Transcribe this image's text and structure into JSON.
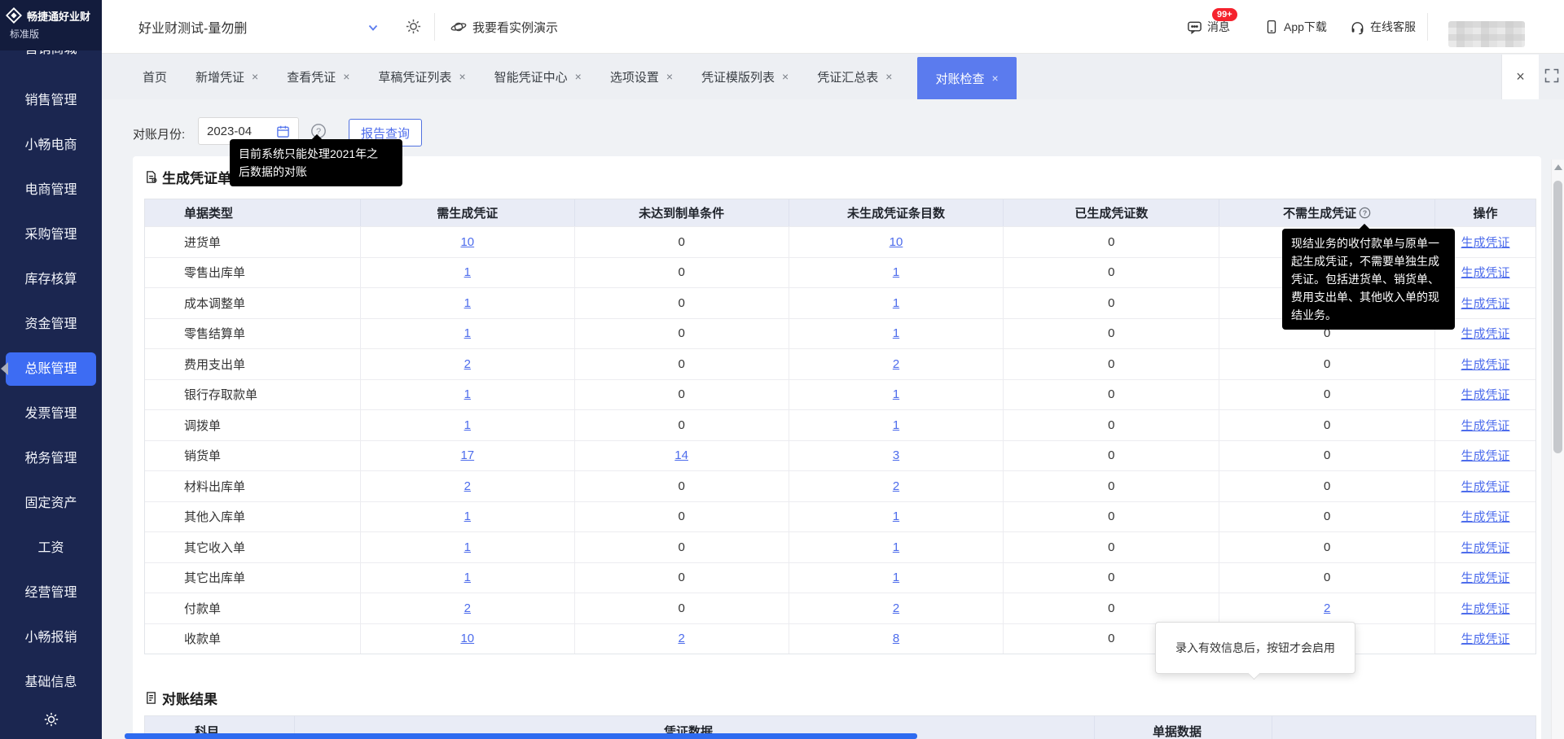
{
  "app": {
    "logo_text": "畅捷通好业财",
    "edition": "标准版"
  },
  "sidebar": {
    "hidden_item": "营销商城",
    "items": [
      "销售管理",
      "小畅电商",
      "电商管理",
      "采购管理",
      "库存核算",
      "资金管理",
      "总账管理",
      "发票管理",
      "税务管理",
      "固定资产",
      "工资",
      "经营管理",
      "小畅报销",
      "基础信息"
    ],
    "active_item": "总账管理"
  },
  "header": {
    "company": "好业财测试-量勿删",
    "demo_link": "我要看实例演示",
    "messages": "消息",
    "messages_badge": "99+",
    "app_download": "App下载",
    "support": "在线客服"
  },
  "tabs": [
    {
      "label": "首页",
      "closable": false,
      "active": false
    },
    {
      "label": "新增凭证",
      "closable": true,
      "active": false
    },
    {
      "label": "查看凭证",
      "closable": true,
      "active": false
    },
    {
      "label": "草稿凭证列表",
      "closable": true,
      "active": false
    },
    {
      "label": "智能凭证中心",
      "closable": true,
      "active": false
    },
    {
      "label": "选项设置",
      "closable": true,
      "active": false
    },
    {
      "label": "凭证模版列表",
      "closable": true,
      "active": false
    },
    {
      "label": "凭证汇总表",
      "closable": true,
      "active": false
    },
    {
      "label": "对账检查",
      "closable": true,
      "active": true
    }
  ],
  "tabbar": {
    "close_all": "×"
  },
  "toolbar": {
    "month_label": "对账月份:",
    "month_value": "2023-04",
    "report_button": "报告查询"
  },
  "tooltips": {
    "month_tip": [
      "目前系统只能处理2021年之",
      "后数据的对账"
    ],
    "no_need_tip": [
      "现结业务的收付款单与原单一",
      "起生成凭证，不需要单独生成",
      "凭证。包括进货单、销货单、",
      "费用支出单、其他收入单的现",
      "结业务。"
    ],
    "enable_tip": "录入有效信息后，按钮才会启用"
  },
  "voucher_section": {
    "title": "生成凭证单据",
    "headers": [
      "单据类型",
      "需生成凭证",
      "未达到制单条件",
      "未生成凭证条目数",
      "已生成凭证数",
      "不需生成凭证",
      "操作"
    ],
    "action_label": "生成凭证",
    "rows": [
      {
        "type": "进货单",
        "values": [
          {
            "v": "10",
            "link": true
          },
          {
            "v": "0"
          },
          {
            "v": "10",
            "link": true
          },
          {
            "v": "0"
          },
          null
        ]
      },
      {
        "type": "零售出库单",
        "values": [
          {
            "v": "1",
            "link": true
          },
          {
            "v": "0"
          },
          {
            "v": "1",
            "link": true
          },
          {
            "v": "0"
          },
          null
        ]
      },
      {
        "type": "成本调整单",
        "values": [
          {
            "v": "1",
            "link": true
          },
          {
            "v": "0"
          },
          {
            "v": "1",
            "link": true
          },
          {
            "v": "0"
          },
          null
        ]
      },
      {
        "type": "零售结算单",
        "values": [
          {
            "v": "1",
            "link": true
          },
          {
            "v": "0"
          },
          {
            "v": "1",
            "link": true
          },
          {
            "v": "0"
          },
          {
            "v": "0"
          }
        ]
      },
      {
        "type": "费用支出单",
        "values": [
          {
            "v": "2",
            "link": true
          },
          {
            "v": "0"
          },
          {
            "v": "2",
            "link": true
          },
          {
            "v": "0"
          },
          {
            "v": "0"
          }
        ]
      },
      {
        "type": "银行存取款单",
        "values": [
          {
            "v": "1",
            "link": true
          },
          {
            "v": "0"
          },
          {
            "v": "1",
            "link": true
          },
          {
            "v": "0"
          },
          {
            "v": "0"
          }
        ]
      },
      {
        "type": "调拨单",
        "values": [
          {
            "v": "1",
            "link": true
          },
          {
            "v": "0"
          },
          {
            "v": "1",
            "link": true
          },
          {
            "v": "0"
          },
          {
            "v": "0"
          }
        ]
      },
      {
        "type": "销货单",
        "values": [
          {
            "v": "17",
            "link": true
          },
          {
            "v": "14",
            "link": true
          },
          {
            "v": "3",
            "link": true
          },
          {
            "v": "0"
          },
          {
            "v": "0"
          }
        ]
      },
      {
        "type": "材料出库单",
        "values": [
          {
            "v": "2",
            "link": true
          },
          {
            "v": "0"
          },
          {
            "v": "2",
            "link": true
          },
          {
            "v": "0"
          },
          {
            "v": "0"
          }
        ]
      },
      {
        "type": "其他入库单",
        "values": [
          {
            "v": "1",
            "link": true
          },
          {
            "v": "0"
          },
          {
            "v": "1",
            "link": true
          },
          {
            "v": "0"
          },
          {
            "v": "0"
          }
        ]
      },
      {
        "type": "其它收入单",
        "values": [
          {
            "v": "1",
            "link": true
          },
          {
            "v": "0"
          },
          {
            "v": "1",
            "link": true
          },
          {
            "v": "0"
          },
          {
            "v": "0"
          }
        ]
      },
      {
        "type": "其它出库单",
        "values": [
          {
            "v": "1",
            "link": true
          },
          {
            "v": "0"
          },
          {
            "v": "1",
            "link": true
          },
          {
            "v": "0"
          },
          {
            "v": "0"
          }
        ]
      },
      {
        "type": "付款单",
        "values": [
          {
            "v": "2",
            "link": true
          },
          {
            "v": "0"
          },
          {
            "v": "2",
            "link": true
          },
          {
            "v": "0"
          },
          {
            "v": "2",
            "link": true
          }
        ]
      },
      {
        "type": "收款单",
        "values": [
          {
            "v": "10",
            "link": true
          },
          {
            "v": "2",
            "link": true
          },
          {
            "v": "8",
            "link": true
          },
          {
            "v": "0"
          },
          null
        ]
      }
    ]
  },
  "result_section": {
    "title": "对账结果",
    "headers": [
      "科目",
      "凭证数据",
      "单据数据"
    ]
  },
  "colors": {
    "sidebar_bg": "#1b2650",
    "sidebar_active": "#3d6cf3",
    "active_tab": "#5b7bee",
    "link": "#4d6cec",
    "badge": "#f5222d",
    "table_header_bg": "#e9ecf6",
    "hscroll_thumb": "#2e6bf0"
  }
}
